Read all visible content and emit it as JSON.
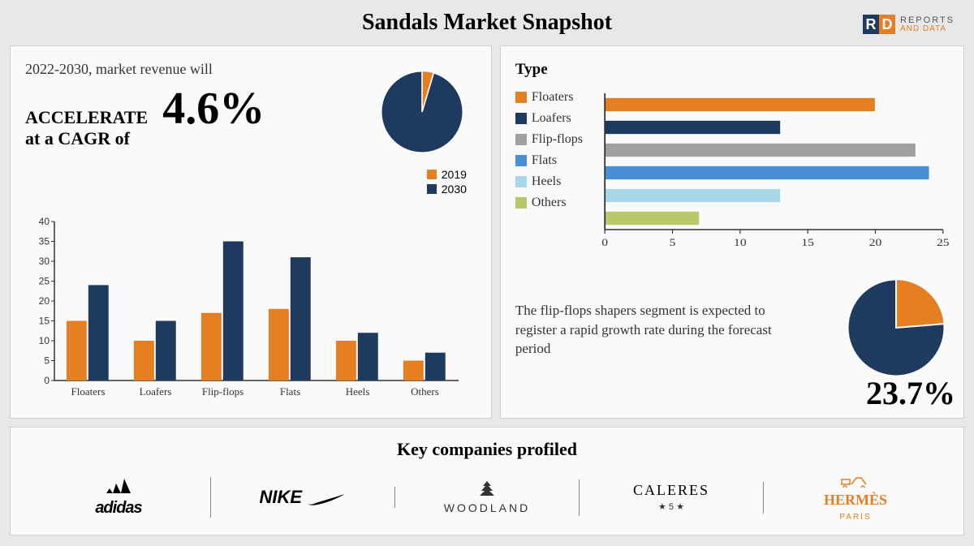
{
  "title": "Sandals Market Snapshot",
  "logo": {
    "reports": "REPORTS",
    "and_data": "AND DATA"
  },
  "left": {
    "market_text": "2022-2030, market revenue will",
    "accel_line1": "ACCELERATE",
    "accel_line2": "at a CAGR of",
    "cagr": "4.6%",
    "pie_small": {
      "slice_pct": 4.6,
      "slice_color": "#e67e22",
      "rest_color": "#1e3a5f",
      "border": "#ffffff"
    },
    "bar_chart": {
      "type": "grouped-bar",
      "categories": [
        "Floaters",
        "Loafers",
        "Flip-flops",
        "Flats",
        "Heels",
        "Others"
      ],
      "series": [
        {
          "name": "2019",
          "color": "#e67e22",
          "values": [
            15,
            10,
            17,
            18,
            10,
            5
          ]
        },
        {
          "name": "2030",
          "color": "#1e3a5f",
          "values": [
            24,
            15,
            35,
            31,
            12,
            7
          ]
        }
      ],
      "ylim": [
        0,
        40
      ],
      "ytick_step": 5,
      "axis_color": "#333",
      "label_fontsize": 13,
      "tick_fontsize": 12
    }
  },
  "right": {
    "type_title": "Type",
    "legend": [
      {
        "label": "Floaters",
        "color": "#e67e22"
      },
      {
        "label": "Loafers",
        "color": "#1e3a5f"
      },
      {
        "label": "Flip-flops",
        "color": "#a0a0a0"
      },
      {
        "label": "Flats",
        "color": "#4a90d9"
      },
      {
        "label": "Heels",
        "color": "#a8d8e8"
      },
      {
        "label": "Others",
        "color": "#b8c969"
      }
    ],
    "hbar": {
      "type": "horizontal-bar",
      "values": [
        20,
        13,
        23,
        24,
        13,
        7
      ],
      "colors": [
        "#e67e22",
        "#1e3a5f",
        "#a0a0a0",
        "#4a90d9",
        "#a8d8e8",
        "#b8c969"
      ],
      "xlim": [
        0,
        25
      ],
      "xtick_step": 5,
      "axis_color": "#333",
      "tick_fontsize": 13,
      "bar_outline": "#ffffff"
    },
    "insight": "The flip-flops shapers segment is expected to register a rapid growth rate during the forecast period",
    "pie_big": {
      "pct": 23.7,
      "label": "23.7%",
      "slice_color": "#e67e22",
      "rest_color": "#1e3a5f",
      "border": "#ffffff"
    }
  },
  "companies": {
    "title": "Key companies profiled",
    "list": [
      "adidas",
      "NIKE",
      "WOODLAND",
      "CALERES",
      "HERMÈS"
    ],
    "caleres_sub": "★ 5 ★",
    "hermes_sub": "PARIS"
  }
}
